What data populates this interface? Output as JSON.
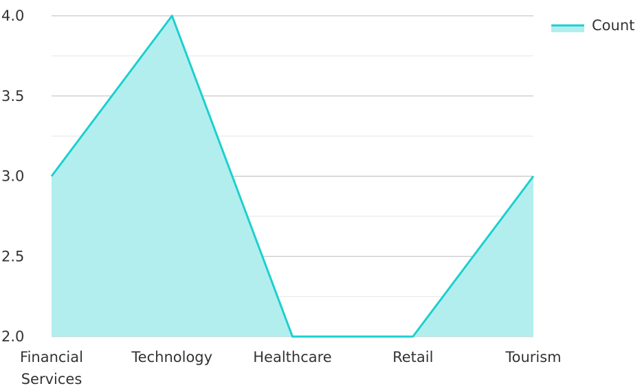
{
  "chart_data": {
    "type": "area",
    "categories": [
      "Financial\nServices",
      "Technology",
      "Healthcare",
      "Retail",
      "Tourism"
    ],
    "series": [
      {
        "name": "Count",
        "values": [
          3,
          4,
          2,
          2,
          3
        ]
      }
    ],
    "ylim": [
      2.0,
      4.0
    ],
    "y_ticks": [
      "2.0",
      "2.5",
      "3.0",
      "3.5",
      "4.0"
    ],
    "grid": true,
    "legend": "top-right",
    "colors": {
      "line": "#1ccfcf",
      "fill": "#b2eeee",
      "major_grid": "#bbbbbb",
      "minor_grid": "#e5e5e5"
    }
  }
}
